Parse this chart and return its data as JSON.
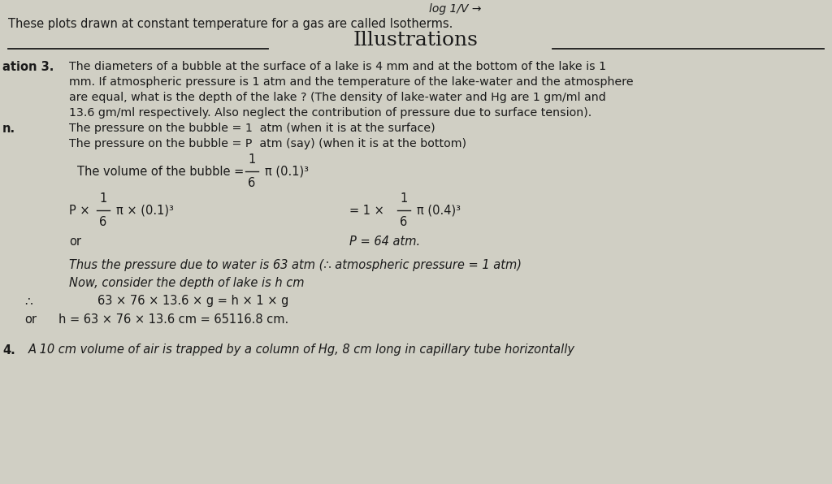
{
  "bg_color": "#d0cfc4",
  "text_color": "#1a1a1a",
  "title": "Illustrations",
  "top_line1": "log 1/V →",
  "top_line2": "These plots drawn at constant temperature for a gas are called Isotherms.",
  "section_label": "ation 3.",
  "section_label2": "n.",
  "body_para": [
    "The diameters of a bubble at the surface of a lake is 4 mm and at the bottom of the lake is 1",
    "mm. If atmospheric pressure is 1 atm and the temperature of the lake-water and the atmosphere",
    "are equal, what is the depth of the lake ? (The density of lake-water and Hg are 1 gm/ml and",
    "13.6 gm/ml respectively. Also neglect the contribution of pressure due to surface tension)."
  ],
  "pressure_lines": [
    "The pressure on the bubble = 1  atm (when it is at the surface)",
    "The pressure on the bubble = P  atm (say) (when it is at the bottom)"
  ],
  "vol_text": "The volume of the bubble = ",
  "vol_frac_n": "1",
  "vol_frac_d": "6",
  "vol_rest": "π (0.1)³",
  "eq_left_pre": "P × ",
  "eq_left_frac_n": "1",
  "eq_left_frac_d": "6",
  "eq_left_post": "π × (0.1)³",
  "eq_right_pre": "= 1 ×",
  "eq_right_frac_n": "1",
  "eq_right_frac_d": "6",
  "eq_right_post": "π (0.4)³",
  "or_word": "or",
  "p_result": "P = 64 atm.",
  "thus_line": "Thus the pressure due to water is 63 atm (∴ atmospheric pressure = 1 atm)",
  "now_line": "Now, consider the depth of lake is h cm",
  "therefore_sym": "∴",
  "therefore_eq": "63 × 76 × 13.6 × g = h × 1 × g",
  "or_h": "or",
  "h_eq": "h = 63 × 76 × 13.6 cm = 65116.8 cm.",
  "bottom_num": "4.",
  "bottom_text": "A 10 cm volume of air is trapped by a column of Hg, 8 cm long in capillary tube horizontally"
}
